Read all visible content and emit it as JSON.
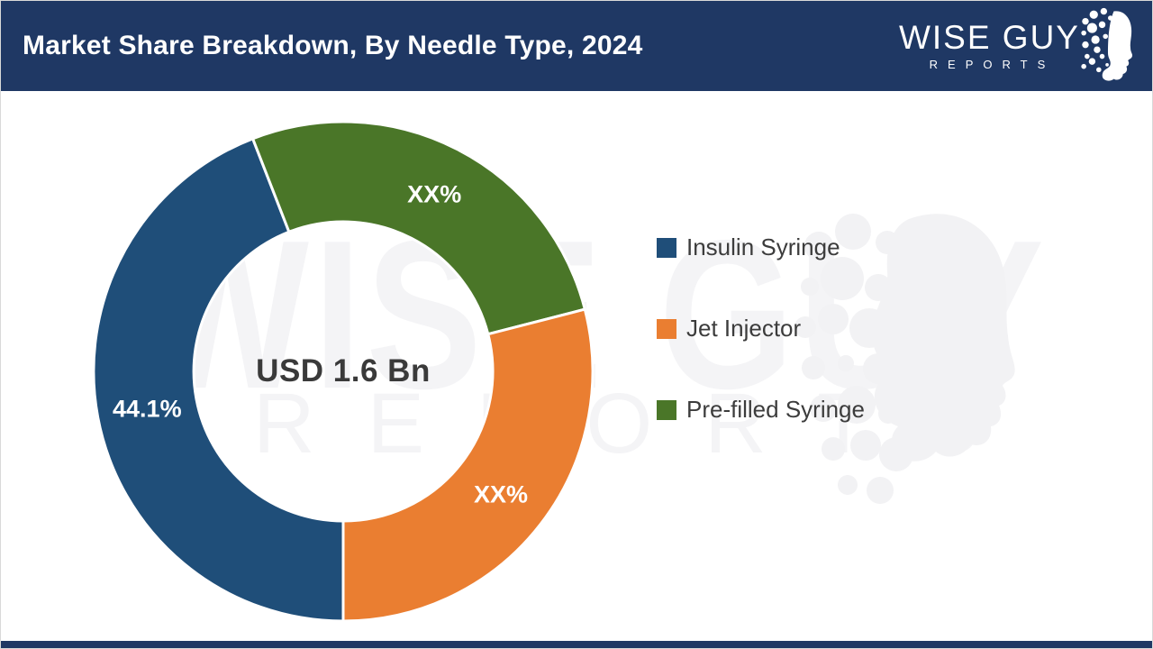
{
  "header": {
    "title": "Market Share Breakdown, By Needle Type, 2024",
    "bg_color": "#1f3864",
    "logo": {
      "line1": "WISE GUY",
      "line2": "REPORTS"
    }
  },
  "watermark": {
    "line1": "WISE GUY",
    "line2": "REPORTS"
  },
  "legend": {
    "items": [
      {
        "label": "Insulin Syringe",
        "color": "#1f4e79"
      },
      {
        "label": "Jet Injector",
        "color": "#ea7e31"
      },
      {
        "label": "Pre-filled Syringe",
        "color": "#4a7628"
      }
    ]
  },
  "chart_data": {
    "type": "pie",
    "subtype": "donut",
    "title": "Market Share Breakdown, By Needle Type, 2024",
    "center_label": "USD 1.6 Bn",
    "start_angle_deg": 90,
    "direction": "clockwise",
    "inner_radius_ratio": 0.6,
    "slices": [
      {
        "name": "Insulin Syringe",
        "value_pct": 44.1,
        "label": "44.1%",
        "color": "#1f4e79"
      },
      {
        "name": "Pre-filled Syringe",
        "value_pct": 26.9,
        "label": "XX%",
        "color": "#4a7628"
      },
      {
        "name": "Jet Injector",
        "value_pct": 29.0,
        "label": "XX%",
        "color": "#ea7e31"
      }
    ]
  }
}
